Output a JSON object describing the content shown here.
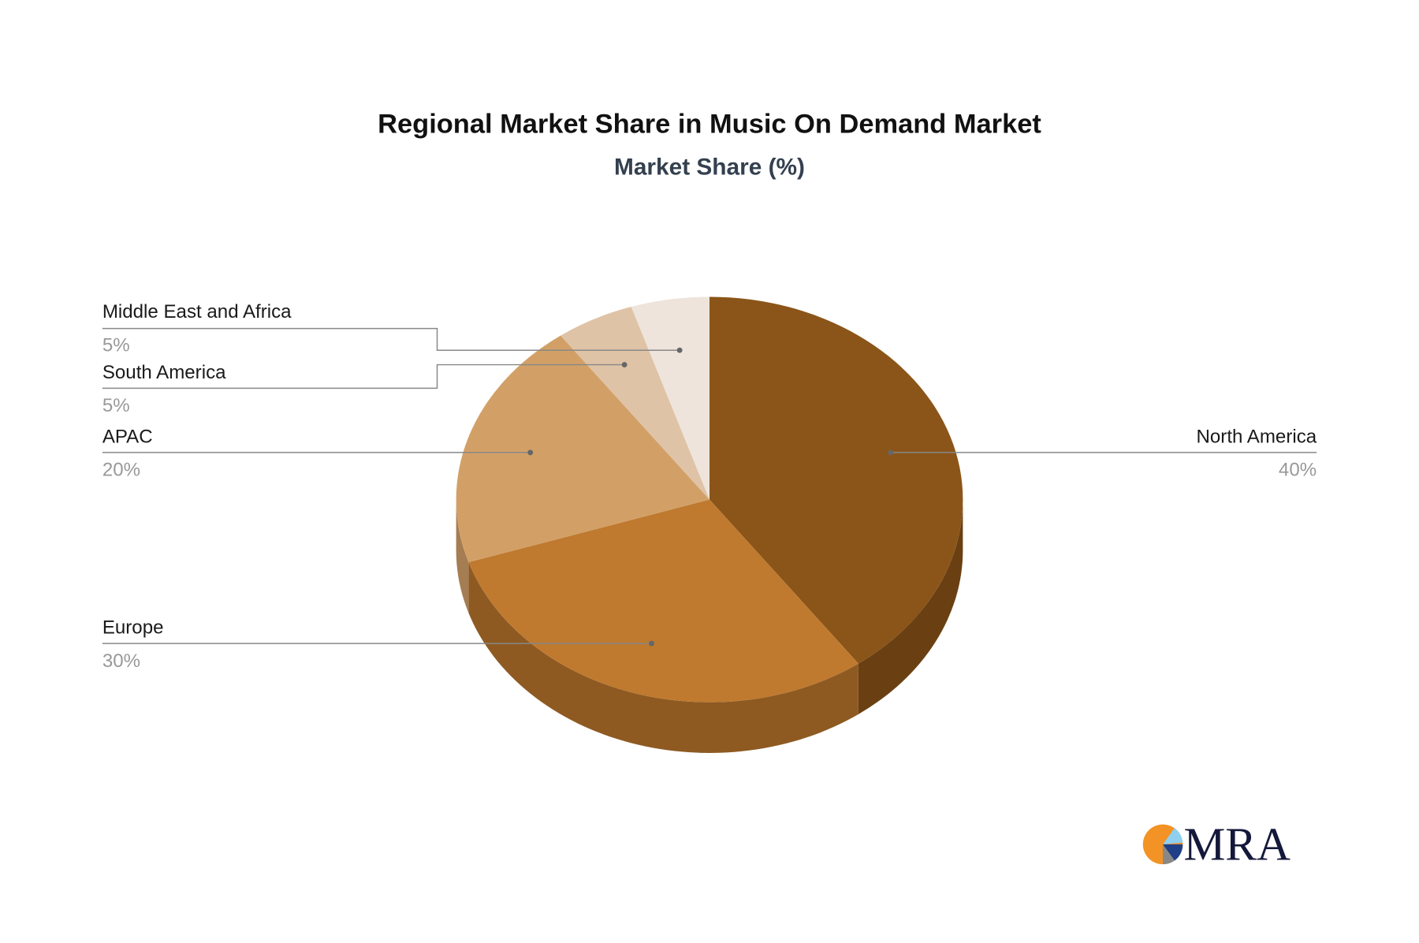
{
  "chart_data": {
    "type": "pie",
    "style": "3d",
    "title": "Regional Market Share in Music On Demand Market",
    "subtitle": "Market Share (%)",
    "slices": [
      {
        "label": "North America",
        "value": 40,
        "value_label": "40%",
        "color": "#8B5519",
        "side_color": "#6A4013"
      },
      {
        "label": "Europe",
        "value": 30,
        "value_label": "30%",
        "color": "#BF7A2F",
        "side_color": "#8E5A22"
      },
      {
        "label": "APAC",
        "value": 20,
        "value_label": "20%",
        "color": "#D2A067",
        "side_color": "#A47D52"
      },
      {
        "label": "South America",
        "value": 5,
        "value_label": "5%",
        "color": "#DFC3A6",
        "side_color": "#B29B84"
      },
      {
        "label": "Middle East and Africa",
        "value": 5,
        "value_label": "5%",
        "color": "#EEE4DB",
        "side_color": "#BEB5AE"
      }
    ]
  },
  "logo": {
    "text": "MRA"
  }
}
